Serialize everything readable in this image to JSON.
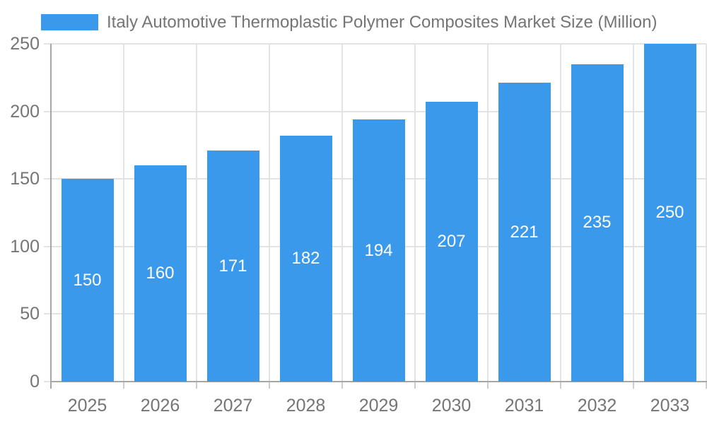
{
  "chart_data": {
    "type": "bar",
    "title": "Italy Automotive Thermoplastic Polymer Composites Market Size (Million)",
    "categories": [
      "2025",
      "2026",
      "2027",
      "2028",
      "2029",
      "2030",
      "2031",
      "2032",
      "2033"
    ],
    "values": [
      150,
      160,
      171,
      182,
      194,
      207,
      221,
      235,
      250
    ],
    "xlabel": "",
    "ylabel": "",
    "ylim": [
      0,
      250
    ],
    "yticks": [
      0,
      50,
      100,
      150,
      200,
      250
    ],
    "grid": true,
    "legend_position": "top-left",
    "value_labels": "inside-center",
    "colors": {
      "bar": "#3B99EC",
      "grid": "#e3e3e3",
      "tick": "#cccccc",
      "axis": "#a6a6a6",
      "tick_label": "#757575",
      "value_label": "#ffffff",
      "legend_text": "#757575",
      "background": "#ffffff"
    }
  }
}
